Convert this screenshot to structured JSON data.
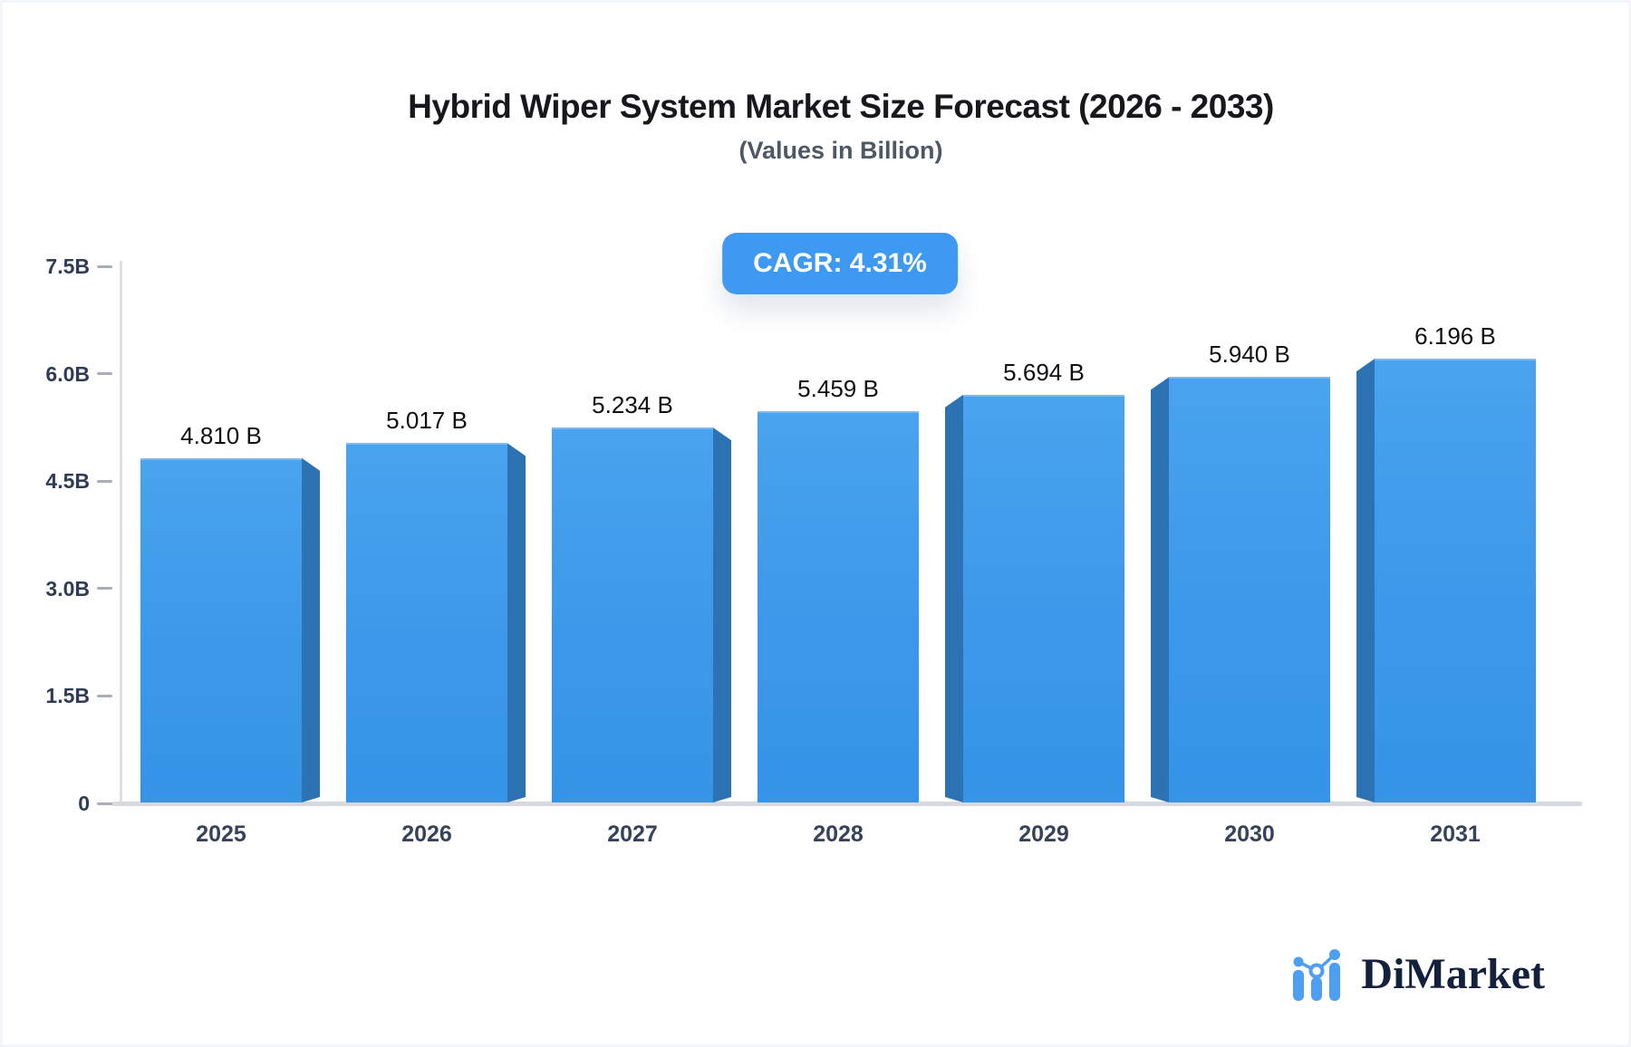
{
  "title": "Hybrid Wiper System Market Size Forecast (2026 - 2033)",
  "subtitle": "(Values in Billion)",
  "badge": {
    "label": "CAGR: 4.31%",
    "bg_color": "#3e99f3",
    "text_color": "#ffffff"
  },
  "chart_data": {
    "type": "bar",
    "categories": [
      "2025",
      "2026",
      "2027",
      "2028",
      "2029",
      "2030",
      "2031"
    ],
    "values": [
      4.81,
      5.017,
      5.234,
      5.459,
      5.694,
      5.94,
      6.196
    ],
    "value_labels": [
      "4.810 B",
      "5.017 B",
      "5.234 B",
      "5.459 B",
      "5.694 B",
      "5.940 B",
      "6.196 B"
    ],
    "title": "Hybrid Wiper System Market Size Forecast (2026 - 2033)",
    "subtitle": "(Values in Billion)",
    "cagr": "4.31%",
    "xlabel": "",
    "ylabel": "",
    "ylim": [
      0,
      7.5
    ],
    "yticks": [
      {
        "value": 7.5,
        "label": "7.5B"
      },
      {
        "value": 6.0,
        "label": "6.0B"
      },
      {
        "value": 4.5,
        "label": "4.5B"
      },
      {
        "value": 3.0,
        "label": "3.0B"
      },
      {
        "value": 1.5,
        "label": "1.5B"
      },
      {
        "value": 0,
        "label": "0"
      }
    ],
    "grid": false,
    "legend": "none",
    "bar_style": {
      "face_color": "#3f9ceb",
      "side_color": "#2d72b2",
      "effect": "3d-center-perspective"
    }
  },
  "logo": {
    "text": "DiMarket",
    "icon": "mini-bar-line-chart-icon",
    "icon_color": "#4d9ff2",
    "text_color": "#14213d"
  }
}
